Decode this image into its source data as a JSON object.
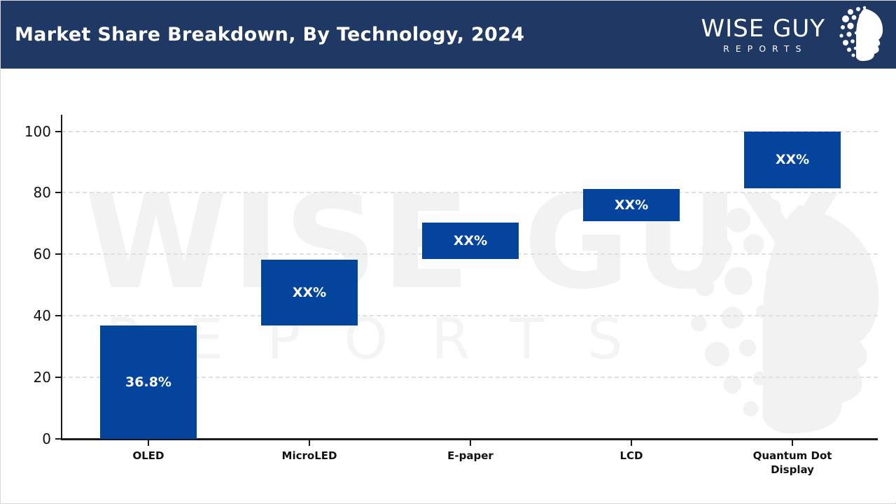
{
  "header": {
    "title": "Market Share Breakdown, By Technology, 2024",
    "logo": {
      "wordmark": "WISE GUY",
      "subtext": "REPORTS"
    }
  },
  "watermark": {
    "line1": "WISE GUY",
    "line2": "REPORTS"
  },
  "colors": {
    "header_bg": "#1f3864",
    "bar_fill": "#04449c",
    "bar_label": "#ffffff",
    "axis": "#1a1a1a",
    "grid": "#e0e0e0",
    "watermark": "#f2f2f2"
  },
  "chart_data": {
    "type": "bar",
    "subtype": "waterfall",
    "title": "Market Share Breakdown, By Technology, 2024",
    "xlabel": "",
    "ylabel": "",
    "categories": [
      "OLED",
      "MicroLED",
      "E-paper",
      "LCD",
      "Quantum Dot Display"
    ],
    "segments": [
      {
        "category": "OLED",
        "start": 0,
        "end": 36.8,
        "label": "36.8%"
      },
      {
        "category": "MicroLED",
        "start": 36.8,
        "end": 58.3,
        "label": "XX%"
      },
      {
        "category": "E-paper",
        "start": 58.5,
        "end": 70.3,
        "label": "XX%"
      },
      {
        "category": "LCD",
        "start": 70.8,
        "end": 81.3,
        "label": "XX%"
      },
      {
        "category": "Quantum Dot Display",
        "start": 81.4,
        "end": 100,
        "label": "XX%"
      }
    ],
    "yticks": [
      0,
      20,
      40,
      60,
      80,
      100
    ],
    "ylim": [
      0,
      105
    ],
    "grid": "horizontal-dashed",
    "legend": "none"
  }
}
